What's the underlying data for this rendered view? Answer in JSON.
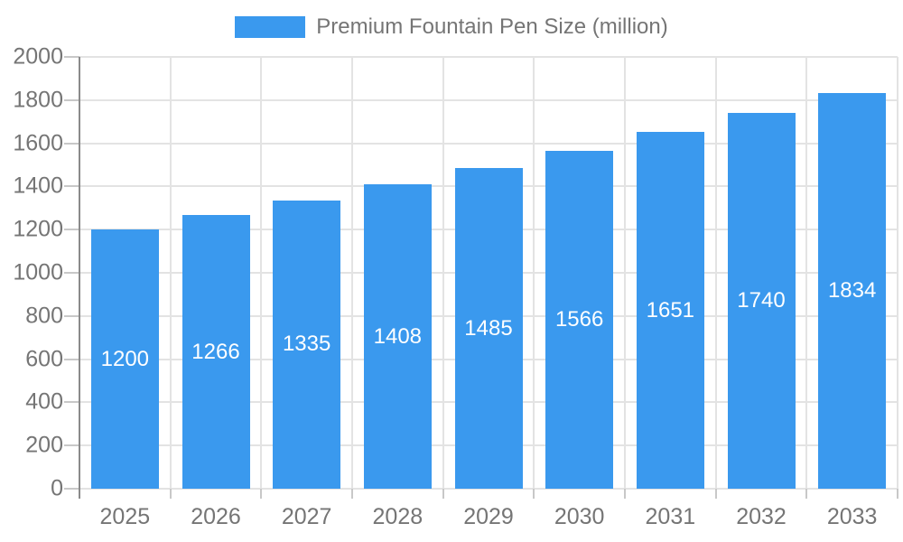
{
  "legend": {
    "label": "Premium Fountain Pen Size (million)"
  },
  "chart_data": {
    "type": "bar",
    "title": "Premium Fountain Pen Size (million)",
    "categories": [
      "2025",
      "2026",
      "2027",
      "2028",
      "2029",
      "2030",
      "2031",
      "2032",
      "2033"
    ],
    "values": [
      1200,
      1266,
      1335,
      1408,
      1485,
      1566,
      1651,
      1740,
      1834
    ],
    "xlabel": "",
    "ylabel": "",
    "ylim": [
      0,
      2000
    ],
    "ytick_step": 200,
    "grid": true,
    "legend_position": "top-center",
    "bar_value_labels": "inside-center",
    "colors": {
      "bar": "#3a99ee",
      "bar_value_text": "#ffffff",
      "axis_text": "#757575",
      "legend_text": "#757575",
      "gridline": "#e3e3e3",
      "tick": "#c8c8c8",
      "axis_line": "#8a8a8a",
      "background": "#ffffff"
    }
  }
}
